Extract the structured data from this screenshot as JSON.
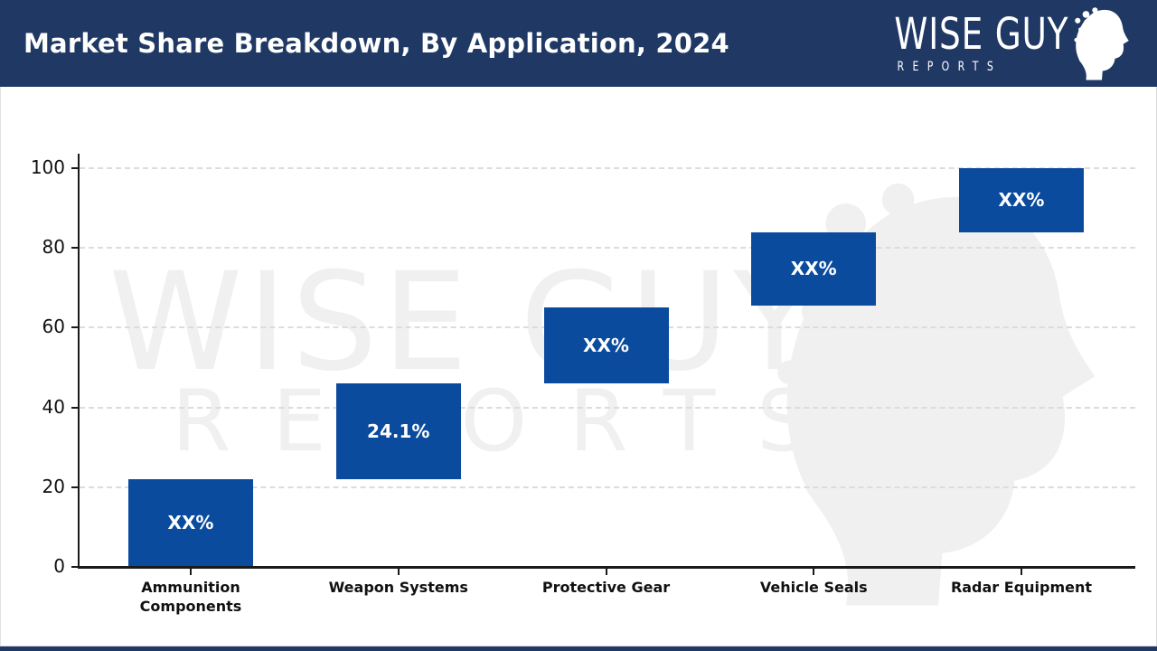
{
  "header": {
    "title": "Market Share Breakdown, By Application, 2024",
    "logo": {
      "line1": "WISE GUY",
      "line2": "REPORTS"
    }
  },
  "watermark": {
    "line1": "WISE GUY",
    "line2": "REPORTS"
  },
  "colors": {
    "header_bg": "#1f3864",
    "footer_bg": "#1f3864",
    "bar": "#0a4b9e",
    "bar_label": "#ffffff",
    "grid": "#dcdcdc",
    "axis": "#1a1a1a",
    "watermark": "#f0f0f0"
  },
  "chart_data": {
    "type": "bar",
    "subtype": "waterfall",
    "title": "Market Share Breakdown, By Application, 2024",
    "xlabel": "",
    "ylabel": "",
    "ylim": [
      0,
      105
    ],
    "yticks": [
      0,
      20,
      40,
      60,
      80,
      100
    ],
    "grid": "horizontal-dashed",
    "legend": "none",
    "categories": [
      "Ammunition\nComponents",
      "Weapon Systems",
      "Protective Gear",
      "Vehicle Seals",
      "Radar Equipment"
    ],
    "bars": [
      {
        "category": "Ammunition Components",
        "start": 0,
        "end": 22,
        "label": "XX%"
      },
      {
        "category": "Weapon Systems",
        "start": 22,
        "end": 46,
        "label": "24.1%"
      },
      {
        "category": "Protective Gear",
        "start": 46,
        "end": 65,
        "label": "XX%"
      },
      {
        "category": "Vehicle Seals",
        "start": 65.5,
        "end": 84,
        "label": "XX%"
      },
      {
        "category": "Radar Equipment",
        "start": 84,
        "end": 100,
        "label": "XX%"
      }
    ]
  }
}
